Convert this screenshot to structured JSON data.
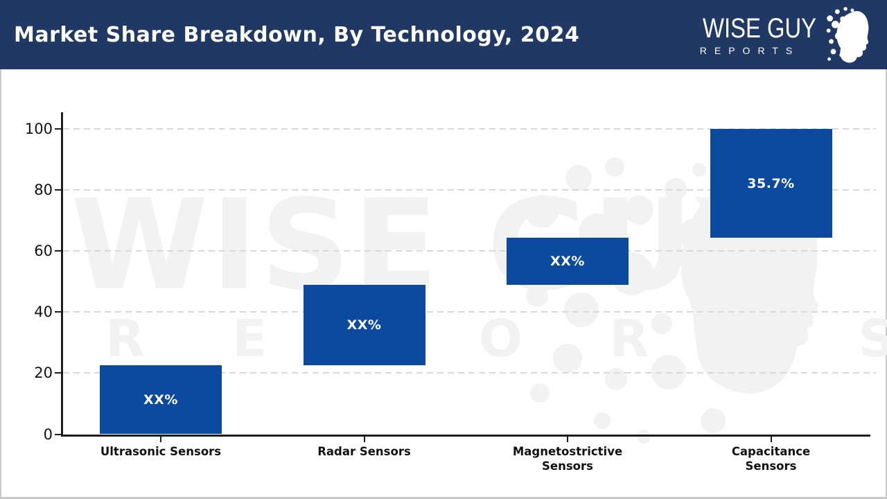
{
  "header": {
    "title": "Market Share Breakdown, By Technology, 2024",
    "logo": {
      "main": "WISE GUY",
      "sub": "REPORTS"
    }
  },
  "watermark": {
    "line1": "WISE GUY",
    "line2": "R E P O R T S"
  },
  "chart_data": {
    "type": "bar",
    "subtype": "waterfall",
    "title": "Market Share Breakdown, By Technology, 2024",
    "xlabel": "",
    "ylabel": "",
    "ylim": [
      0,
      100
    ],
    "yticks": [
      0,
      20,
      40,
      60,
      80,
      100
    ],
    "grid": "horizontal-dashed",
    "legend": "none",
    "categories": [
      "Ultrasonic Sensors",
      "Radar Sensors",
      "Magnetostrictive Sensors",
      "Capacitance Sensors"
    ],
    "bars": [
      {
        "category_lines": [
          "Ultrasonic Sensors"
        ],
        "start": 0,
        "end": 22.6,
        "label": "XX%"
      },
      {
        "category_lines": [
          "Radar Sensors"
        ],
        "start": 22.6,
        "end": 48.9,
        "label": "XX%"
      },
      {
        "category_lines": [
          "Magnetostrictive",
          "Sensors"
        ],
        "start": 48.9,
        "end": 64.3,
        "label": "XX%"
      },
      {
        "category_lines": [
          "Capacitance",
          "Sensors"
        ],
        "start": 64.3,
        "end": 100,
        "label": "35.7%",
        "value": 35.7
      }
    ]
  },
  "colors": {
    "header_bg": "#1f3864",
    "bar": "#0b4a9f",
    "bar_label": "#ffffff",
    "grid": "#d9d9d9",
    "axis": "#1c1c1c",
    "watermark": "#f2f2f2",
    "border": "#c9c9c9"
  }
}
